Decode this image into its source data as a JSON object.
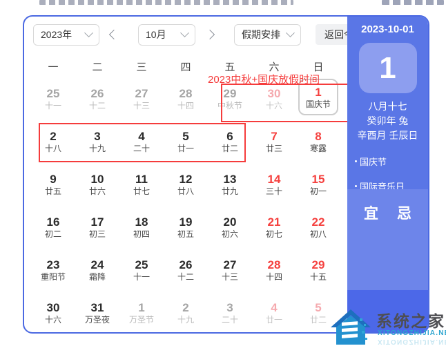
{
  "toolbar": {
    "year_select": "2023年",
    "month_select": "10月",
    "holiday_select": "假期安排",
    "today_button": "返回今天"
  },
  "annotation": {
    "text": "2023中秋+国庆放假时间",
    "color": "#f53c3c"
  },
  "calendar": {
    "weekdays": [
      "一",
      "二",
      "三",
      "四",
      "五",
      "六",
      "日"
    ],
    "days": [
      {
        "num": "25",
        "lunar": "十一",
        "type": "om"
      },
      {
        "num": "26",
        "lunar": "十二",
        "type": "om"
      },
      {
        "num": "27",
        "lunar": "十三",
        "type": "om"
      },
      {
        "num": "28",
        "lunar": "十四",
        "type": "om"
      },
      {
        "num": "29",
        "lunar": "中秋节",
        "type": "om"
      },
      {
        "num": "30",
        "lunar": "十六",
        "type": "om-red"
      },
      {
        "num": "1",
        "lunar": "国庆节",
        "type": "cur-red",
        "selected": true
      },
      {
        "num": "2",
        "lunar": "十八",
        "type": "cur"
      },
      {
        "num": "3",
        "lunar": "十九",
        "type": "cur"
      },
      {
        "num": "4",
        "lunar": "二十",
        "type": "cur"
      },
      {
        "num": "5",
        "lunar": "廿一",
        "type": "cur"
      },
      {
        "num": "6",
        "lunar": "廿二",
        "type": "cur"
      },
      {
        "num": "7",
        "lunar": "廿三",
        "type": "cur-red"
      },
      {
        "num": "8",
        "lunar": "寒露",
        "type": "cur-red"
      },
      {
        "num": "9",
        "lunar": "廿五",
        "type": "cur"
      },
      {
        "num": "10",
        "lunar": "廿六",
        "type": "cur"
      },
      {
        "num": "11",
        "lunar": "廿七",
        "type": "cur"
      },
      {
        "num": "12",
        "lunar": "廿八",
        "type": "cur"
      },
      {
        "num": "13",
        "lunar": "廿九",
        "type": "cur"
      },
      {
        "num": "14",
        "lunar": "三十",
        "type": "cur-red"
      },
      {
        "num": "15",
        "lunar": "初一",
        "type": "cur-red"
      },
      {
        "num": "16",
        "lunar": "初二",
        "type": "cur"
      },
      {
        "num": "17",
        "lunar": "初三",
        "type": "cur"
      },
      {
        "num": "18",
        "lunar": "初四",
        "type": "cur"
      },
      {
        "num": "19",
        "lunar": "初五",
        "type": "cur"
      },
      {
        "num": "20",
        "lunar": "初六",
        "type": "cur"
      },
      {
        "num": "21",
        "lunar": "初七",
        "type": "cur-red"
      },
      {
        "num": "22",
        "lunar": "初八",
        "type": "cur-red"
      },
      {
        "num": "23",
        "lunar": "重阳节",
        "type": "cur"
      },
      {
        "num": "24",
        "lunar": "霜降",
        "type": "cur"
      },
      {
        "num": "25",
        "lunar": "十一",
        "type": "cur"
      },
      {
        "num": "26",
        "lunar": "十二",
        "type": "cur"
      },
      {
        "num": "27",
        "lunar": "十三",
        "type": "cur"
      },
      {
        "num": "28",
        "lunar": "十四",
        "type": "cur-red"
      },
      {
        "num": "29",
        "lunar": "十五",
        "type": "cur-red"
      },
      {
        "num": "30",
        "lunar": "十六",
        "type": "cur"
      },
      {
        "num": "31",
        "lunar": "万圣夜",
        "type": "cur"
      },
      {
        "num": "1",
        "lunar": "万圣节",
        "type": "om"
      },
      {
        "num": "2",
        "lunar": "十九",
        "type": "om"
      },
      {
        "num": "3",
        "lunar": "二十",
        "type": "om"
      },
      {
        "num": "4",
        "lunar": "廿一",
        "type": "om-red"
      },
      {
        "num": "5",
        "lunar": "廿二",
        "type": "om-red"
      }
    ]
  },
  "sidebar": {
    "date": "2023-10-01",
    "big_day": "1",
    "lunar_date": "八月十七",
    "ganzhi_line1": "癸卯年 兔",
    "ganzhi_line2": "辛酉月 壬辰日",
    "festivals": [
      "国庆节",
      "国际音乐日"
    ],
    "yi": "宜",
    "ji": "忌",
    "bg": "#5a76e6",
    "box_bg": "#8d9eef"
  },
  "watermark": {
    "title": "系统之家",
    "url": "XITONGZHIJIA.NET"
  },
  "colors": {
    "accent_red": "#f53c3c",
    "panel_border": "#4b69e2",
    "weekend_red": "#f5413f"
  }
}
